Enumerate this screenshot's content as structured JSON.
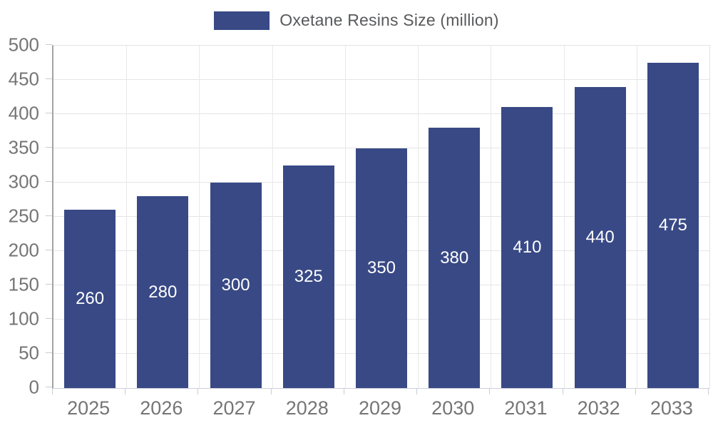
{
  "chart_data": {
    "type": "bar",
    "title": "",
    "legend_label": "Oxetane Resins Size (million)",
    "categories": [
      "2025",
      "2026",
      "2027",
      "2028",
      "2029",
      "2030",
      "2031",
      "2032",
      "2033"
    ],
    "values": [
      260,
      280,
      300,
      325,
      350,
      380,
      410,
      440,
      475
    ],
    "xlabel": "",
    "ylabel": "",
    "ylim": [
      0,
      500
    ],
    "ytick_interval": 50,
    "yticks": [
      0,
      50,
      100,
      150,
      200,
      250,
      300,
      350,
      400,
      450,
      500
    ],
    "grid": true,
    "legend_position": "top-center",
    "bar_color": "#384985",
    "value_label_color": "#ffffff",
    "axis_text_color": "#757575"
  }
}
